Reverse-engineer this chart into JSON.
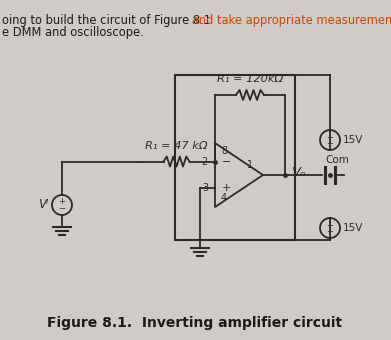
{
  "bg_color": "#d0cbc6",
  "wire_color": "#2a2a2a",
  "header1_black": "oing to build the circuit of Figure 8.1",
  "header1_orange": " and take appropriate measuremen",
  "header2": "e DMM and oscilloscope.",
  "Rf_label": "R₁ = 120kΩ",
  "Rin_label": "R₁ = 47 kΩ",
  "Vo_label": "Vₒ",
  "Vi_label": "Vᴵ",
  "supply_label": "15V",
  "com_label": "Com",
  "pin2": "2",
  "pin3": "3",
  "pin8": "8",
  "pin1": "1",
  "pin4": "4",
  "caption": "Figure 8.1.  Inverting amplifier circuit",
  "plus_sign": "+",
  "minus_sign": "−"
}
